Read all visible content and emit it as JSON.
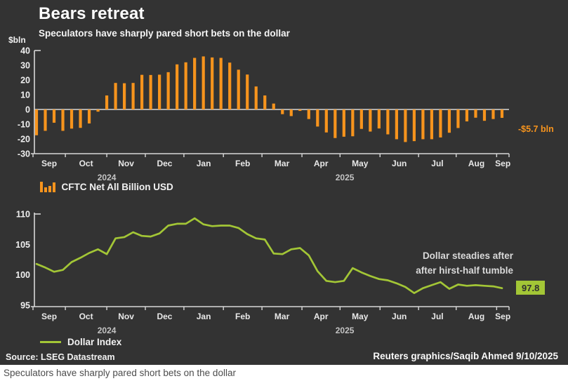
{
  "header": {
    "title": "Bears retreat",
    "subtitle": "Speculators have sharply pared short bets on the dollar"
  },
  "colors": {
    "background": "#333333",
    "bar": "#F7941D",
    "line": "#A3C636",
    "axis": "#D8D8D8",
    "tick_label": "#F0F0F0",
    "month_label": "#E8E8E8",
    "year_label": "#C4C4C4",
    "annotation": "#D9D9D9",
    "box_text": "#2F2F2F",
    "caption_text": "#4D4D4D"
  },
  "chart_data": [
    {
      "id": "cftc-net-positioning",
      "type": "bar",
      "legend": "CFTC Net All Billion USD",
      "unit_label": "$bln",
      "ylim": [
        -30,
        40
      ],
      "yticks": [
        40,
        30,
        20,
        10,
        0,
        -10,
        -20,
        -30
      ],
      "x_months": [
        "Sep",
        "Oct",
        "Nov",
        "Dec",
        "Jan",
        "Feb",
        "Mar",
        "Apr",
        "May",
        "Jun",
        "Jul",
        "Aug",
        "Sep"
      ],
      "month_boundaries": [
        0,
        0.068,
        0.155,
        0.236,
        0.317,
        0.4,
        0.481,
        0.565,
        0.645,
        0.729,
        0.81,
        0.889,
        0.974,
        1
      ],
      "year_labels": [
        {
          "text": "2024",
          "pos": 0.155
        },
        {
          "text": "2025",
          "pos": 0.655
        }
      ],
      "values": [
        -17.5,
        -14.5,
        -9,
        -14.5,
        -13,
        -12.5,
        -9.5,
        -1.5,
        9.5,
        18,
        17.8,
        18,
        23.5,
        23.4,
        23.6,
        25.3,
        30.6,
        32,
        35,
        36,
        35.3,
        35,
        31.8,
        27,
        23.7,
        15.6,
        9.5,
        4,
        -3.2,
        -4.5,
        -1,
        -6.5,
        -11.6,
        -15.6,
        -19.4,
        -18.5,
        -18.2,
        -13.2,
        -15,
        -12.9,
        -16.9,
        -20.2,
        -22.1,
        -21.5,
        -20.2,
        -20.2,
        -19,
        -15.8,
        -12.6,
        -8.1,
        -5.6,
        -7.7,
        -6.5,
        -5.7
      ],
      "end_label": "-$5.7 bln"
    },
    {
      "id": "dollar-index",
      "type": "line",
      "legend": "Dollar Index",
      "ylim": [
        95,
        110
      ],
      "yticks": [
        110,
        105,
        100,
        95
      ],
      "x_months": [
        "Sep",
        "Oct",
        "Nov",
        "Dec",
        "Jan",
        "Feb",
        "Mar",
        "Apr",
        "May",
        "Jun",
        "Jul",
        "Aug",
        "Sep"
      ],
      "month_boundaries": [
        0,
        0.068,
        0.155,
        0.236,
        0.317,
        0.4,
        0.481,
        0.565,
        0.645,
        0.729,
        0.81,
        0.889,
        0.974,
        1
      ],
      "year_labels": [
        {
          "text": "2024",
          "pos": 0.155
        },
        {
          "text": "2025",
          "pos": 0.655
        }
      ],
      "values": [
        101.8,
        101.2,
        100.5,
        100.8,
        102.1,
        102.8,
        103.6,
        104.2,
        103.4,
        106.0,
        106.2,
        107.0,
        106.4,
        106.3,
        106.8,
        108.1,
        108.4,
        108.4,
        109.3,
        108.3,
        108.0,
        108.1,
        108.1,
        107.7,
        106.7,
        106.0,
        105.8,
        103.5,
        103.4,
        104.2,
        104.4,
        103.2,
        100.6,
        99.0,
        98.8,
        99.0,
        101.1,
        100.4,
        99.8,
        99.3,
        99.1,
        98.6,
        98.0,
        97.0,
        97.8,
        98.3,
        98.8,
        97.7,
        98.4,
        98.2,
        98.3,
        98.2,
        98.1,
        97.8
      ],
      "end_label": "97.8",
      "annotation": [
        "Dollar steadies after",
        "after hirst-half tumble"
      ]
    }
  ],
  "source": "Source: LSEG Datastream",
  "credit": "Reuters graphics/Saqib Ahmed 9/10/2025",
  "caption": "Speculators have sharply pared short bets on the dollar"
}
